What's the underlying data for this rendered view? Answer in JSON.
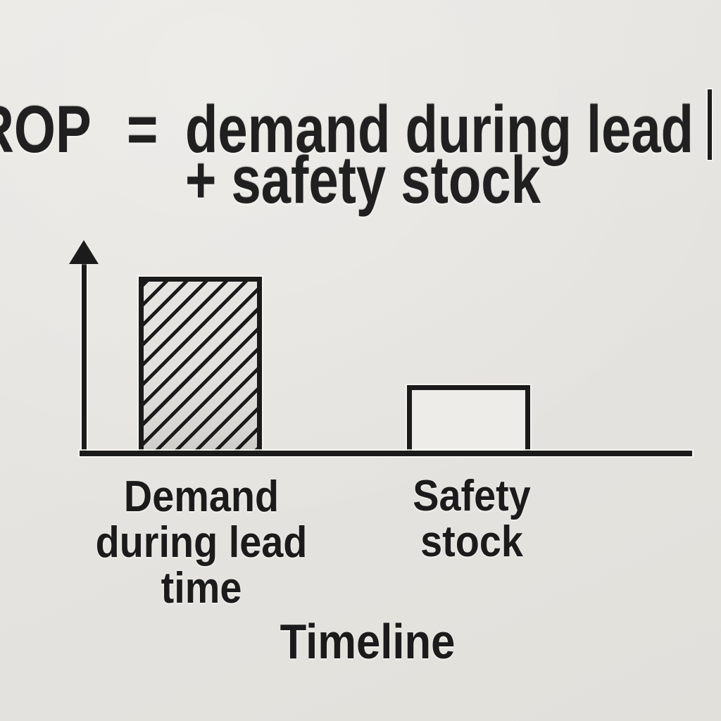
{
  "formula": {
    "lhs": "ROP",
    "equals": "=",
    "term1": "demand during lead",
    "term2": "+ safety stock"
  },
  "chart_data": {
    "type": "bar",
    "title": "ROP = demand during lead + safety stock",
    "categories": [
      "Demand during lead time",
      "Safety stock"
    ],
    "values": [
      1.0,
      0.4
    ],
    "xlabel": "Timeline",
    "ylabel": "",
    "ylim": [
      0,
      1.2
    ],
    "grid": false,
    "legend": false,
    "bar_styles": [
      "diagonal-hatch-fill",
      "plain-outline"
    ],
    "y_axis_arrowhead": true,
    "x_axis_arrowhead": false
  },
  "labels": {
    "demand_lines": [
      "Demand",
      "during lead",
      "time"
    ],
    "safety_lines": [
      "Safety",
      "stock"
    ]
  },
  "colors": {
    "background": "#e7e5e1",
    "ink": "#1c1c1c",
    "bar_plain_fill": "#eeece9"
  }
}
